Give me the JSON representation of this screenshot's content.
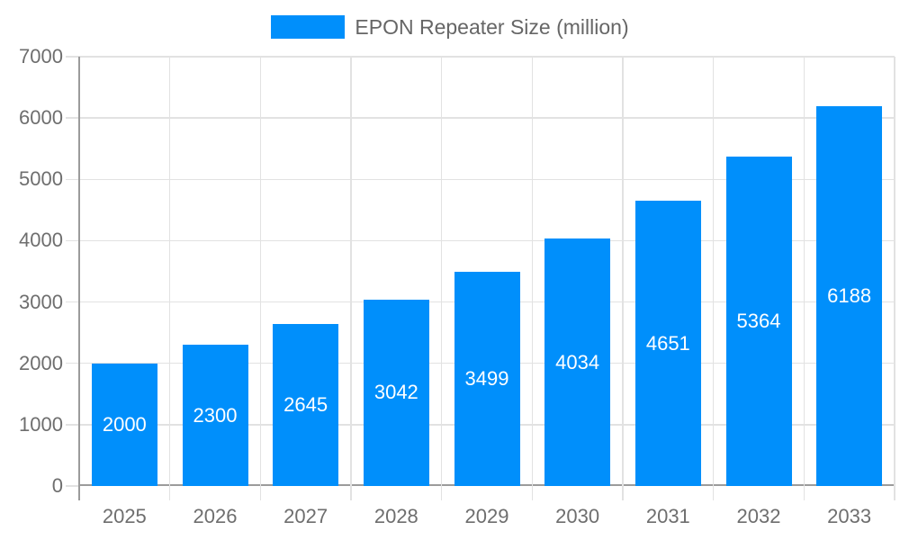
{
  "chart_data": {
    "type": "bar",
    "title": "EPON Repeater Size (million)",
    "legend": [
      "EPON Repeater Size (million)"
    ],
    "legend_position": "top",
    "categories": [
      "2025",
      "2026",
      "2027",
      "2028",
      "2029",
      "2030",
      "2031",
      "2032",
      "2033"
    ],
    "values": [
      2000,
      2300,
      2645,
      3042,
      3499,
      4034,
      4651,
      5364,
      6188
    ],
    "bar_value_labels": [
      "2000",
      "2300",
      "2645",
      "3042",
      "3499",
      "4034",
      "4651",
      "5364",
      "6188"
    ],
    "xlabel": "",
    "ylabel": "",
    "ylim": [
      0,
      7000
    ],
    "yticks": [
      0,
      1000,
      2000,
      3000,
      4000,
      5000,
      6000,
      7000
    ],
    "grid": true,
    "colors": {
      "bar": "#008ffb",
      "bar_label": "#ffffff",
      "axis_text": "#6e6e6e",
      "legend_text": "#666666",
      "grid_line": "#e2e2e2",
      "axis_line": "#9b9b9b",
      "background": "#ffffff"
    }
  }
}
